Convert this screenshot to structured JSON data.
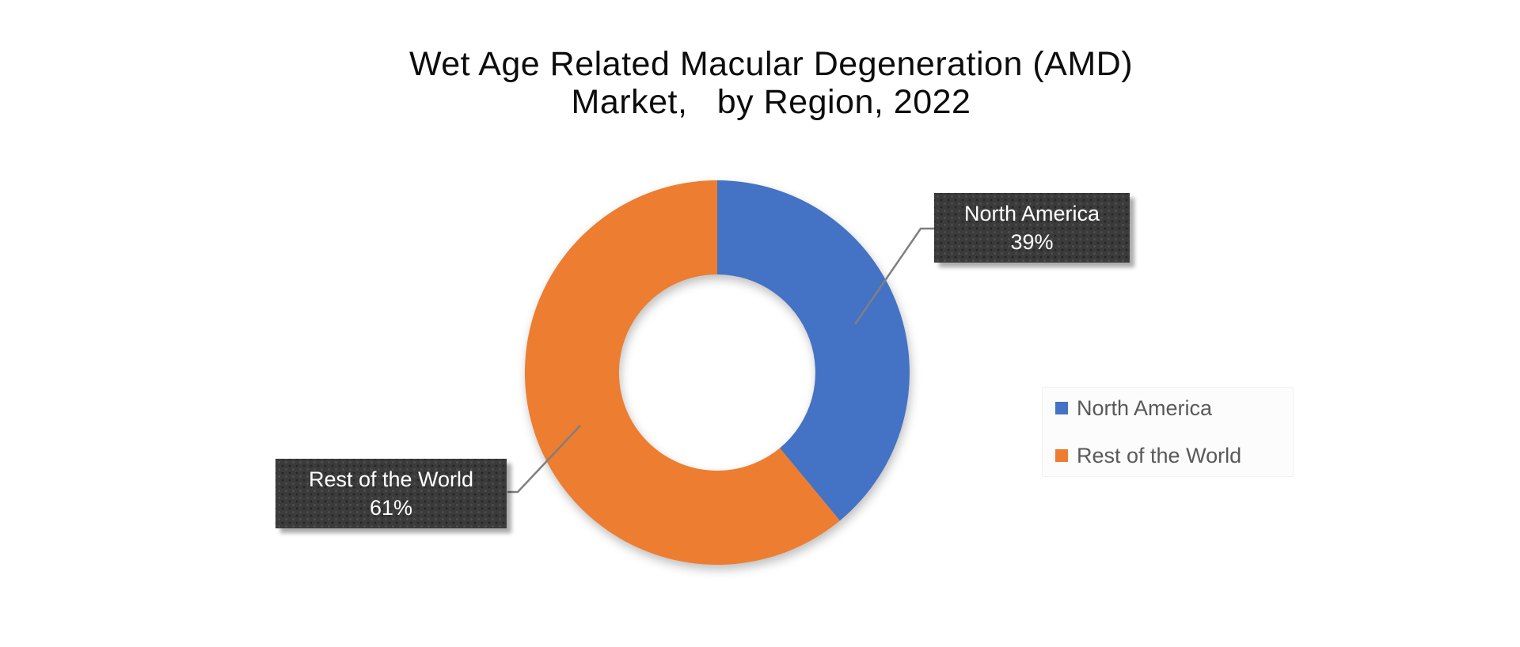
{
  "title": {
    "line1": "Wet Age Related Macular Degeneration (AMD)",
    "line2": "Market,   by Region, 2022"
  },
  "chart_data": {
    "type": "pie",
    "subtype": "donut",
    "title": "Wet Age Related Macular Degeneration (AMD) Market,   by Region, 2022",
    "categories": [
      "North America",
      "Rest of the World"
    ],
    "values": [
      39,
      61
    ],
    "unit": "%",
    "colors": [
      "#4472C4",
      "#ED7D31"
    ],
    "start_angle_deg": 0,
    "direction": "clockwise",
    "hole_ratio": 0.51,
    "legend_position": "right",
    "data_labels": [
      {
        "category": "North America",
        "value_text": "39%"
      },
      {
        "category": "Rest of the World",
        "value_text": "61%"
      }
    ]
  },
  "callouts": {
    "north_america": {
      "title": "North America",
      "value": "39%"
    },
    "rest_of_world": {
      "title": "Rest of the World",
      "value": "61%"
    }
  },
  "legend": {
    "items": [
      {
        "label": "North America",
        "color": "#4472C4"
      },
      {
        "label": "Rest of the World",
        "color": "#ED7D31"
      }
    ]
  },
  "colors": {
    "series_blue": "#4472C4",
    "series_orange": "#ED7D31",
    "callout_background": "#3b3b3b",
    "callout_text": "#ffffff",
    "leader_line": "#7f7f7f",
    "legend_text": "#595959",
    "title_text": "#0c0c0c",
    "page_background": "#ffffff"
  }
}
